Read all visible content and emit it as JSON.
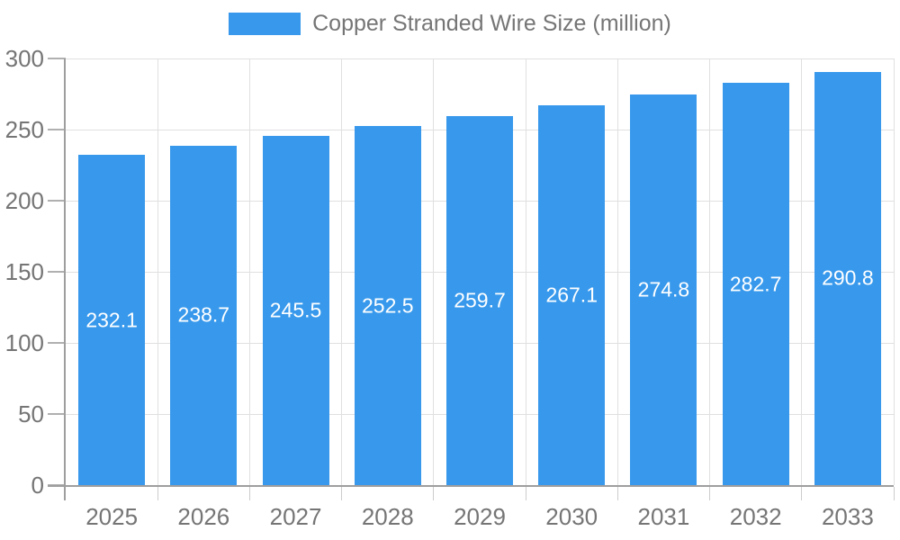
{
  "chart_data": {
    "type": "bar",
    "title": "Copper Stranded Wire Size (million)",
    "legend": {
      "label": "Copper Stranded Wire Size (million)",
      "position": "top"
    },
    "categories": [
      "2025",
      "2026",
      "2027",
      "2028",
      "2029",
      "2030",
      "2031",
      "2032",
      "2033"
    ],
    "series": [
      {
        "name": "Copper Stranded Wire Size (million)",
        "values": [
          232.1,
          238.7,
          245.5,
          252.5,
          259.7,
          267.1,
          274.8,
          282.7,
          290.8
        ]
      }
    ],
    "value_labels": [
      "232.1",
      "238.7",
      "245.5",
      "252.5",
      "259.7",
      "267.1",
      "274.8",
      "282.7",
      "290.8"
    ],
    "xlabel": "",
    "ylabel": "",
    "ylim": [
      0,
      300
    ],
    "yticks": [
      0,
      50,
      100,
      150,
      200,
      250,
      300
    ],
    "grid": true,
    "colors": {
      "bar": "#3899ec",
      "value_label": "#ffffff",
      "axis": "#9e9e9e",
      "gridline": "#e0e0e0",
      "tick": "#b0b0b0",
      "text": "#757575",
      "background": "#ffffff"
    }
  }
}
